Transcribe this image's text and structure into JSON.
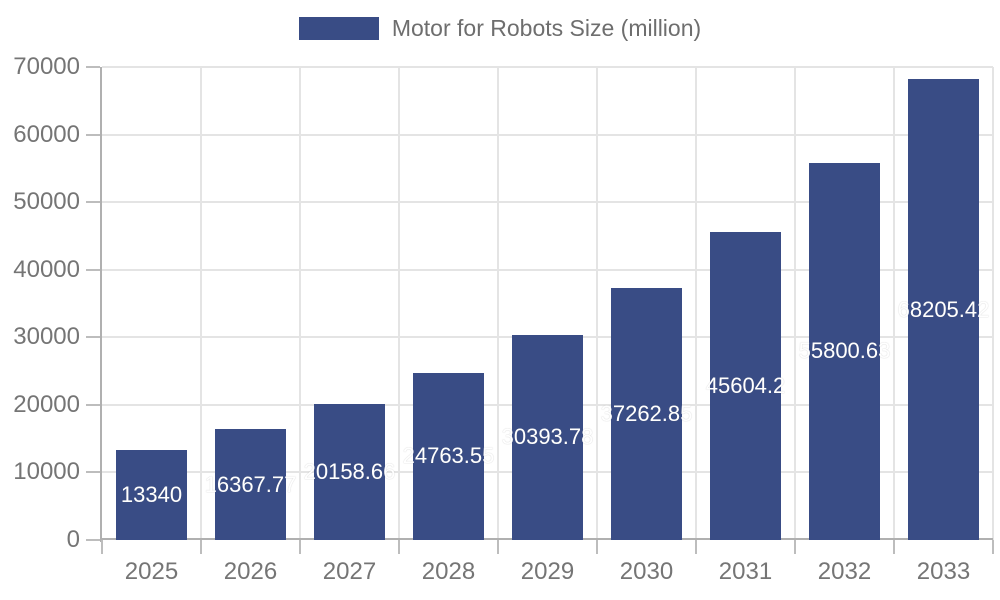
{
  "legend": {
    "label": "Motor for Robots Size (million)"
  },
  "colors": {
    "bar": "#394C85",
    "bar_label_text": "#FFFFFF",
    "axis_text": "#757575",
    "legend_text": "#6E6E6E",
    "grid_line": "#E4E4E4",
    "axis_line": "#B0B0B0"
  },
  "chart_data": {
    "type": "bar",
    "title": "Motor for Robots Size (million)",
    "categories": [
      "2025",
      "2026",
      "2027",
      "2028",
      "2029",
      "2030",
      "2031",
      "2032",
      "2033"
    ],
    "values": [
      13340,
      16367.77,
      20158.66,
      24763.55,
      30393.78,
      37262.85,
      45604.2,
      55800.63,
      68205.42
    ],
    "bar_labels": [
      "13340",
      "16367.77",
      "20158.66",
      "24763.55",
      "30393.78",
      "37262.85",
      "45604.2",
      "55800.63",
      "68205.42"
    ],
    "xlabel": "",
    "ylabel": "",
    "ylim": [
      0,
      70000
    ],
    "yticks": [
      0,
      10000,
      20000,
      30000,
      40000,
      50000,
      60000,
      70000
    ],
    "ytick_labels": [
      "0",
      "10000",
      "20000",
      "30000",
      "40000",
      "50000",
      "60000",
      "70000"
    ],
    "grid": true,
    "legend_position": "top-center"
  }
}
